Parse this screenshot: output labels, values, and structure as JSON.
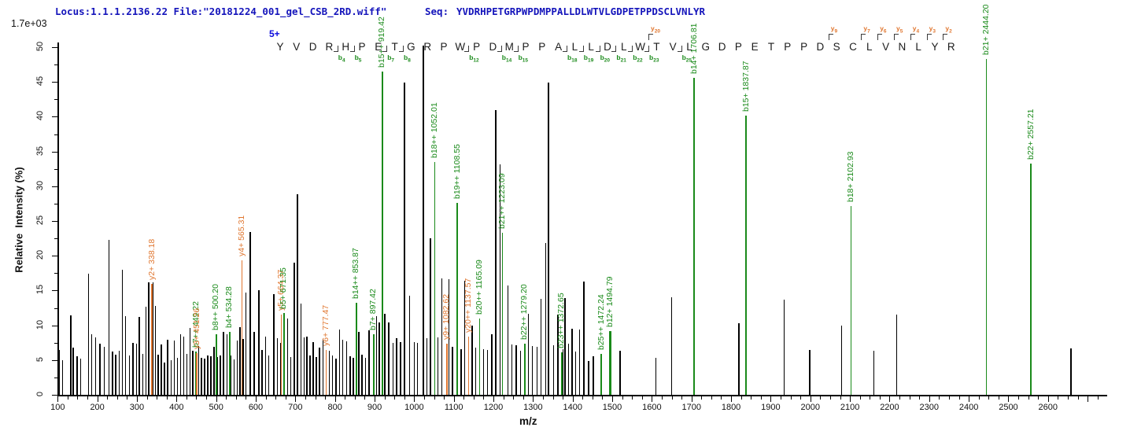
{
  "header": {
    "locus_file": "Locus:1.1.1.2136.22 File:\"20181224_001_gel_CSB_2RD.wiff\"",
    "seq_label": "Seq:",
    "sequence": "YVDRHPETGRPWPDMPPALLDLWTVLGDPETPPDSCLVNLYR"
  },
  "max_intensity_label": "1.7e+03",
  "charge_label": "5+",
  "colors": {
    "b_ion_green": "#1a8a1a",
    "y_ion_orange": "#e0762f",
    "peak_black": "#000000",
    "header_blue": "#1414bb",
    "charge_blue": "#0b0bdd"
  },
  "overlay": {
    "sequence": "YVDRHPETGRPWPDMPPALLDLWTVLGDPETPPDSCLVNLYR",
    "b_ions": [
      4,
      5,
      7,
      8,
      12,
      14,
      15,
      18,
      19,
      20,
      21,
      22,
      23,
      25
    ],
    "y_ions": [
      20,
      9,
      7,
      6,
      5,
      4,
      3,
      2
    ]
  },
  "chart_data": {
    "type": "bar",
    "subtype": "ms2-spectrum",
    "xlabel": "m/z",
    "ylabel": "Relative  Intensity (%)",
    "xlim": [
      100,
      2750
    ],
    "ylim": [
      0,
      50
    ],
    "x_major_tick": 100,
    "x_minor_tick": 25,
    "x_tick_labels": [
      100,
      200,
      300,
      400,
      500,
      600,
      700,
      800,
      900,
      1000,
      1100,
      1200,
      1300,
      1400,
      1500,
      1600,
      1700,
      1800,
      1900,
      2000,
      2100,
      2200,
      2300,
      2400,
      2500,
      2600
    ],
    "y_major_tick": 5,
    "y_tick_labels": [
      0,
      5,
      10,
      15,
      20,
      25,
      30,
      35,
      40,
      45,
      50
    ],
    "grid": false,
    "legend": false,
    "labeled_peaks": [
      {
        "mz": 338.18,
        "intensity": 16.0,
        "ion": "y",
        "label": "y2+ 338.18"
      },
      {
        "mz": 449.22,
        "intensity": 6.2,
        "ion": "b",
        "label": "b7++ 449.22"
      },
      {
        "mz": 451.26,
        "intensity": 6.0,
        "ion": "y",
        "label": "y3+ 451.26"
      },
      {
        "mz": 500.2,
        "intensity": 8.7,
        "ion": "b",
        "label": "b8++ 500.20"
      },
      {
        "mz": 534.28,
        "intensity": 9.0,
        "ion": "b",
        "label": "b4+ 534.28"
      },
      {
        "mz": 565.31,
        "intensity": 19.4,
        "ion": "y",
        "label": "y4+ 565.31"
      },
      {
        "mz": 664.37,
        "intensity": 11.5,
        "ion": "y",
        "label": "y5+ 664.37"
      },
      {
        "mz": 671.35,
        "intensity": 11.8,
        "ion": "b",
        "label": "b5+ 671.35"
      },
      {
        "mz": 777.47,
        "intensity": 6.5,
        "ion": "y",
        "label": "y6+ 777.47"
      },
      {
        "mz": 853.87,
        "intensity": 13.2,
        "ion": "b",
        "label": "b14++ 853.87"
      },
      {
        "mz": 897.42,
        "intensity": 8.7,
        "ion": "b",
        "label": "b7+ 897.42"
      },
      {
        "mz": 919.42,
        "intensity": 46.5,
        "ion": "b",
        "label": "b15++ 919.42"
      },
      {
        "mz": 1052.01,
        "intensity": 33.5,
        "ion": "b",
        "label": "b18++ 1052.01"
      },
      {
        "mz": 1082.62,
        "intensity": 7.4,
        "ion": "y",
        "label": "y9+ 1082.62"
      },
      {
        "mz": 1108.55,
        "intensity": 27.6,
        "ion": "b",
        "label": "b19++ 1108.55"
      },
      {
        "mz": 1137.57,
        "intensity": 8.4,
        "ion": "y",
        "label": "y20++ 1137.57"
      },
      {
        "mz": 1165.09,
        "intensity": 11.0,
        "ion": "b",
        "label": "b20++ 1165.09"
      },
      {
        "mz": 1223.09,
        "intensity": 23.3,
        "ion": "b",
        "label": "b21++ 1223.09"
      },
      {
        "mz": 1279.2,
        "intensity": 7.4,
        "ion": "b",
        "label": "b22++ 1279.20"
      },
      {
        "mz": 1372.65,
        "intensity": 6.1,
        "ion": "b",
        "label": "b23++ 1372.65"
      },
      {
        "mz": 1472.24,
        "intensity": 5.9,
        "ion": "b",
        "label": "b25++ 1472.24"
      },
      {
        "mz": 1494.79,
        "intensity": 9.2,
        "ion": "b",
        "label": "b12+ 1494.79",
        "w": 3
      },
      {
        "mz": 1706.81,
        "intensity": 45.6,
        "ion": "b",
        "label": "b14+ 1706.81"
      },
      {
        "mz": 1837.87,
        "intensity": 40.2,
        "ion": "b",
        "label": "b15+ 1837.87"
      },
      {
        "mz": 2102.93,
        "intensity": 27.2,
        "ion": "b",
        "label": "b18+ 2102.93"
      },
      {
        "mz": 2444.2,
        "intensity": 48.3,
        "ion": "b",
        "label": "b21+ 2444.20"
      },
      {
        "mz": 2557.21,
        "intensity": 33.3,
        "ion": "b",
        "label": "b22+ 2557.21"
      }
    ],
    "peaks": [
      [
        104,
        6.5
      ],
      [
        112,
        5.0
      ],
      [
        133,
        11.4
      ],
      [
        139,
        6.8
      ],
      [
        149,
        5.5
      ],
      [
        158,
        5.2
      ],
      [
        178,
        17.4
      ],
      [
        186,
        8.7
      ],
      [
        196,
        8.3
      ],
      [
        207,
        7.3
      ],
      [
        218,
        6.9
      ],
      [
        230,
        22.3
      ],
      [
        238,
        6.2
      ],
      [
        246,
        5.8
      ],
      [
        255,
        6.3
      ],
      [
        263,
        18.0
      ],
      [
        271,
        11.3
      ],
      [
        281,
        5.6
      ],
      [
        290,
        7.5
      ],
      [
        299,
        7.4
      ],
      [
        306,
        11.2
      ],
      [
        315,
        5.9
      ],
      [
        323,
        12.7
      ],
      [
        330,
        16.2
      ],
      [
        341,
        16.2
      ],
      [
        347,
        12.8
      ],
      [
        354,
        5.8
      ],
      [
        362,
        7.2
      ],
      [
        370,
        4.6
      ],
      [
        378,
        7.9
      ],
      [
        386,
        5.0
      ],
      [
        394,
        7.8
      ],
      [
        402,
        5.3
      ],
      [
        410,
        8.7
      ],
      [
        418,
        8.4
      ],
      [
        426,
        5.9
      ],
      [
        434,
        9.6
      ],
      [
        441,
        6.3
      ],
      [
        448,
        5.1
      ],
      [
        456,
        7.0
      ],
      [
        463,
        5.3
      ],
      [
        471,
        5.2
      ],
      [
        479,
        5.7
      ],
      [
        487,
        5.5
      ],
      [
        495,
        6.9
      ],
      [
        503,
        5.4
      ],
      [
        511,
        5.6
      ],
      [
        519,
        9.0
      ],
      [
        527,
        8.7
      ],
      [
        536,
        5.7
      ],
      [
        545,
        5.1
      ],
      [
        553,
        7.8
      ],
      [
        560,
        9.7
      ],
      [
        568,
        8.0
      ],
      [
        575,
        14.7
      ],
      [
        586,
        23.4
      ],
      [
        596,
        9.0
      ],
      [
        608,
        15.1
      ],
      [
        616,
        6.5
      ],
      [
        625,
        8.4
      ],
      [
        633,
        5.6
      ],
      [
        646,
        14.5
      ],
      [
        655,
        8.2
      ],
      [
        663,
        7.5
      ],
      [
        680,
        11.0
      ],
      [
        688,
        5.4
      ],
      [
        697,
        19.0
      ],
      [
        705,
        28.8
      ],
      [
        714,
        13.1
      ],
      [
        722,
        8.3
      ],
      [
        729,
        8.4
      ],
      [
        737,
        5.7
      ],
      [
        745,
        7.6
      ],
      [
        753,
        5.4
      ],
      [
        761,
        6.8
      ],
      [
        770,
        8.0
      ],
      [
        786,
        6.3
      ],
      [
        794,
        5.6
      ],
      [
        803,
        5.2
      ],
      [
        812,
        9.4
      ],
      [
        820,
        7.9
      ],
      [
        829,
        7.7
      ],
      [
        838,
        5.5
      ],
      [
        846,
        5.3
      ],
      [
        860,
        9.1
      ],
      [
        868,
        5.8
      ],
      [
        877,
        5.3
      ],
      [
        886,
        9.3
      ],
      [
        905,
        11.3
      ],
      [
        912,
        10.4
      ],
      [
        926,
        11.7
      ],
      [
        936,
        10.4
      ],
      [
        947,
        7.5
      ],
      [
        956,
        8.2
      ],
      [
        966,
        7.6
      ],
      [
        975,
        44.9
      ],
      [
        988,
        14.3
      ],
      [
        1000,
        7.6
      ],
      [
        1008,
        7.5
      ],
      [
        1023,
        50.2
      ],
      [
        1032,
        8.1
      ],
      [
        1041,
        22.5
      ],
      [
        1060,
        8.3
      ],
      [
        1070,
        16.7
      ],
      [
        1088,
        16.6
      ],
      [
        1097,
        6.9
      ],
      [
        1118,
        6.6
      ],
      [
        1127,
        16.4
      ],
      [
        1146,
        9.9
      ],
      [
        1155,
        6.8
      ],
      [
        1175,
        6.6
      ],
      [
        1185,
        6.5
      ],
      [
        1196,
        8.7
      ],
      [
        1206,
        41.0
      ],
      [
        1217,
        33.2
      ],
      [
        1237,
        15.7
      ],
      [
        1247,
        7.2
      ],
      [
        1258,
        7.1
      ],
      [
        1268,
        6.3
      ],
      [
        1288,
        11.6
      ],
      [
        1298,
        7.0
      ],
      [
        1310,
        6.9
      ],
      [
        1320,
        13.8
      ],
      [
        1332,
        21.8
      ],
      [
        1339,
        44.9
      ],
      [
        1352,
        7.1
      ],
      [
        1363,
        11.5
      ],
      [
        1376,
        6.6
      ],
      [
        1381,
        13.9
      ],
      [
        1390,
        7.3
      ],
      [
        1399,
        9.5
      ],
      [
        1408,
        6.2
      ],
      [
        1417,
        9.4
      ],
      [
        1428,
        16.3
      ],
      [
        1440,
        4.9
      ],
      [
        1452,
        5.5
      ],
      [
        1520,
        6.3
      ],
      [
        1610,
        5.3
      ],
      [
        1650,
        14.0
      ],
      [
        1820,
        10.3
      ],
      [
        1934,
        13.7
      ],
      [
        1998,
        6.4
      ],
      [
        2079,
        10.0
      ],
      [
        2160,
        6.3
      ],
      [
        2218,
        11.5
      ],
      [
        2658,
        6.7
      ]
    ]
  }
}
